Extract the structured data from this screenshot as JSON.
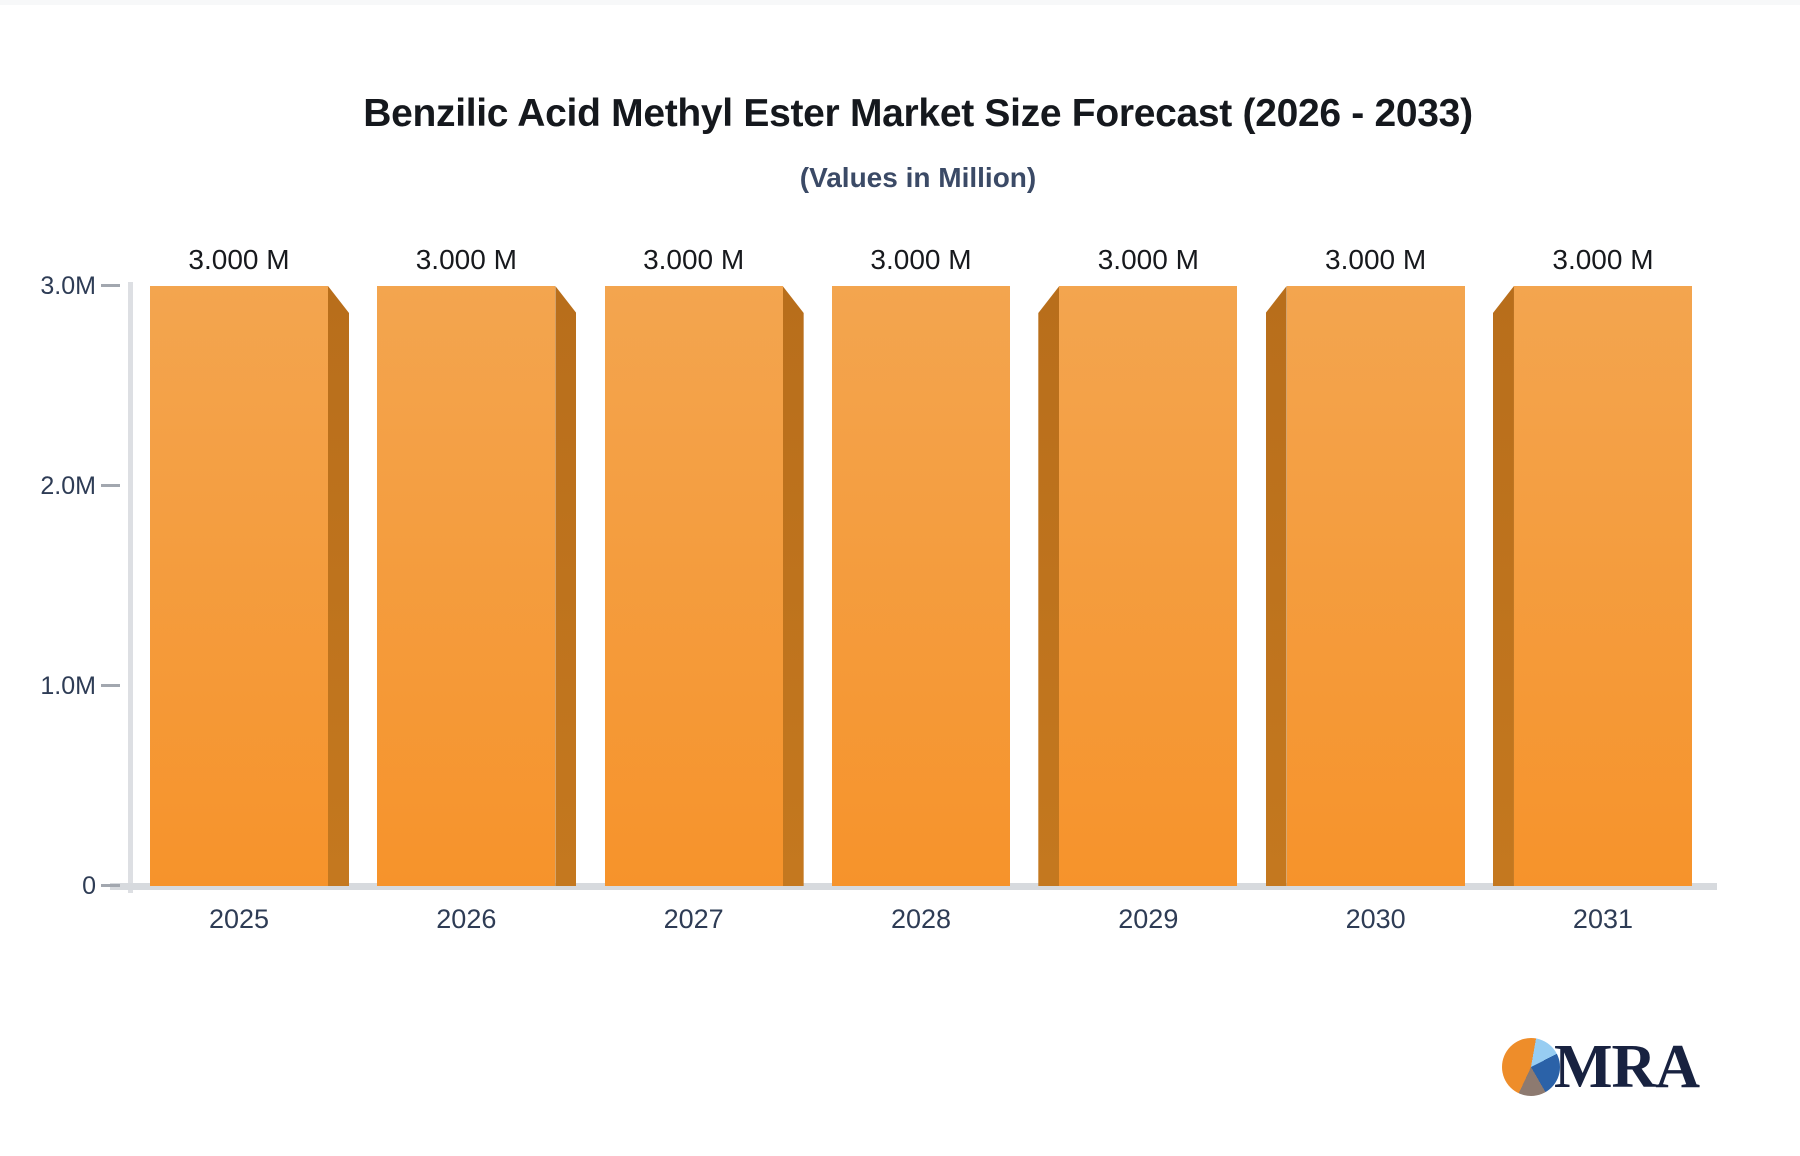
{
  "chart_data": {
    "type": "bar",
    "title": "Benzilic Acid Methyl Ester Market Size Forecast (2026 - 2033)",
    "subtitle": "(Values in Million)",
    "categories": [
      "2025",
      "2026",
      "2027",
      "2028",
      "2029",
      "2030",
      "2031"
    ],
    "values": [
      3.0,
      3.0,
      3.0,
      3.0,
      3.0,
      3.0,
      3.0
    ],
    "value_labels": [
      "3.000 M",
      "3.000 M",
      "3.000 M",
      "3.000 M",
      "3.000 M",
      "3.000 M",
      "3.000 M"
    ],
    "unit": "Million",
    "xlabel": "",
    "ylabel": "",
    "ylim": [
      0,
      3.0
    ],
    "yticks": [
      {
        "value": 3.0,
        "label": "3.0M"
      },
      {
        "value": 2.0,
        "label": "2.0M"
      },
      {
        "value": 1.0,
        "label": "1.0M"
      },
      {
        "value": 0,
        "label": "0"
      }
    ],
    "grid": false,
    "legend": false,
    "bar_style": "3d-perspective-toward-center",
    "colors": {
      "bar_face_top": "#f3a54f",
      "bar_face_bottom": "#f6932b",
      "bar_side_top": "#b86e1b",
      "bar_side_bottom": "#c4781f",
      "axis_line": "#dddfe3",
      "baseline": "#d7dade",
      "tick_text": "#2e3c55",
      "title_text": "#15181d",
      "subtitle_text": "#3b4a66"
    }
  },
  "logo": {
    "text": "MRA",
    "pie_slice_colors": [
      "#ee8d2a",
      "#97cdf2",
      "#2b62a8",
      "#8d7a70"
    ],
    "text_color": "#182240"
  }
}
